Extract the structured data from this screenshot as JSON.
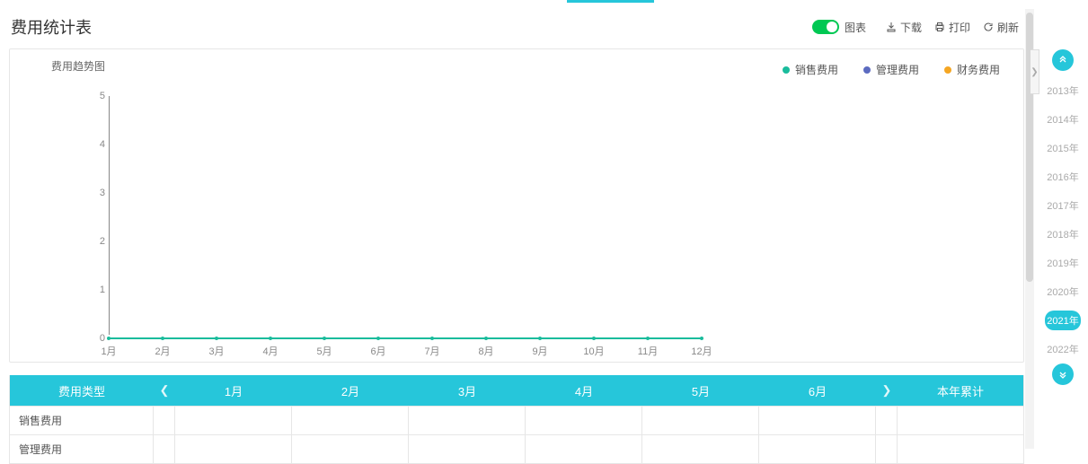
{
  "accent_color": "#26c6da",
  "header": {
    "title": "费用统计表",
    "toggle_label": "图表",
    "actions": {
      "download": "下载",
      "print": "打印",
      "refresh": "刷新"
    }
  },
  "chart": {
    "title": "费用趋势图",
    "type": "line",
    "background_color": "#ffffff",
    "axis_color": "#888888",
    "ylim": [
      0,
      5
    ],
    "ytick_step": 1,
    "yticks": [
      "0",
      "1",
      "2",
      "3",
      "4",
      "5"
    ],
    "xticks": [
      "1月",
      "2月",
      "3月",
      "4月",
      "5月",
      "6月",
      "7月",
      "8月",
      "9月",
      "10月",
      "11月",
      "12月"
    ],
    "legend": [
      {
        "label": "销售费用",
        "color": "#1abc9c"
      },
      {
        "label": "管理费用",
        "color": "#5c6bc0"
      },
      {
        "label": "财务费用",
        "color": "#f5a623"
      }
    ],
    "series": [
      {
        "name": "销售费用",
        "color": "#1abc9c",
        "values": [
          0,
          0,
          0,
          0,
          0,
          0,
          0,
          0,
          0,
          0,
          0,
          0
        ],
        "line_width": 2,
        "marker": "circle",
        "marker_size": 8
      }
    ]
  },
  "table": {
    "col_type": "费用类型",
    "col_total": "本年累计",
    "months": [
      "1月",
      "2月",
      "3月",
      "4月",
      "5月",
      "6月"
    ],
    "rows": [
      {
        "label": "销售费用",
        "cells": [
          "",
          "",
          "",
          "",
          "",
          ""
        ],
        "total": ""
      },
      {
        "label": "管理费用",
        "cells": [
          "",
          "",
          "",
          "",
          "",
          ""
        ],
        "total": ""
      }
    ]
  },
  "years": {
    "list": [
      "2013年",
      "2014年",
      "2015年",
      "2016年",
      "2017年",
      "2018年",
      "2019年",
      "2020年",
      "2021年",
      "2022年"
    ],
    "active": "2021年"
  }
}
